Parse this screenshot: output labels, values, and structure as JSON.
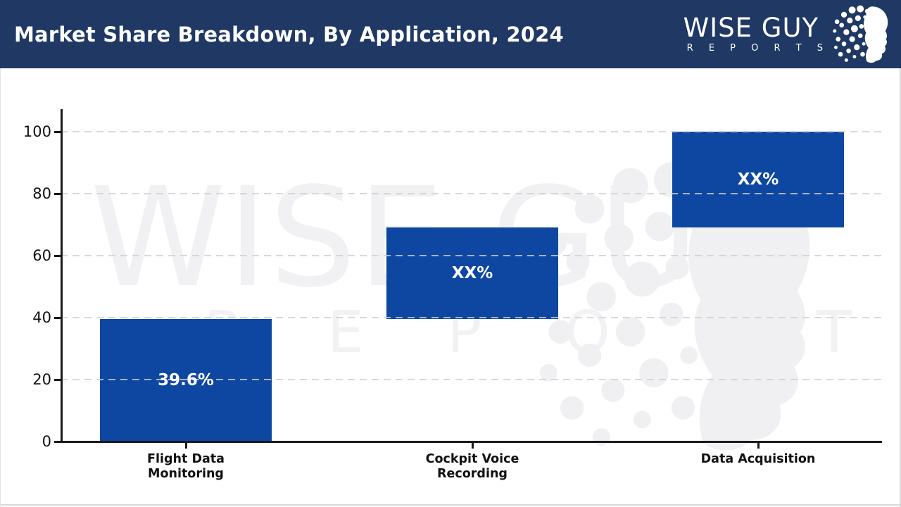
{
  "header": {
    "title": "Market Share Breakdown, By Application, 2024",
    "bg_color": "#1f3864",
    "logo": {
      "wordmark": "WISE GUY",
      "subtext": "R E P O R T S"
    }
  },
  "watermark": {
    "line1": "WISE GUY",
    "line2": "R E P O R T S"
  },
  "chart_data": {
    "type": "bar",
    "subtype": "waterfall",
    "title": "Market Share Breakdown, By Application, 2024",
    "categories": [
      [
        "Flight Data",
        "Monitoring"
      ],
      [
        "Cockpit Voice",
        "Recording"
      ],
      [
        "Data Acquisition"
      ]
    ],
    "segments": [
      {
        "category": "Flight Data Monitoring",
        "start": 0,
        "end": 39.6,
        "label": "39.6%"
      },
      {
        "category": "Cockpit Voice Recording",
        "start": 39.6,
        "end": 69.1,
        "label": "XX%"
      },
      {
        "category": "Data Acquisition",
        "start": 69.1,
        "end": 100,
        "label": "XX%"
      }
    ],
    "yticks": [
      0,
      20,
      40,
      60,
      80,
      100
    ],
    "ylim": [
      0,
      107
    ],
    "xlabel": "",
    "ylabel": "",
    "grid": {
      "axis": "y",
      "style": "dashed",
      "on_top": true
    },
    "grid_color": "#cfcfcf",
    "bar_color": "#0d47a1",
    "bar_label_color": "#ffffff",
    "axis_color": "#1a1a1a",
    "legend": "none"
  }
}
